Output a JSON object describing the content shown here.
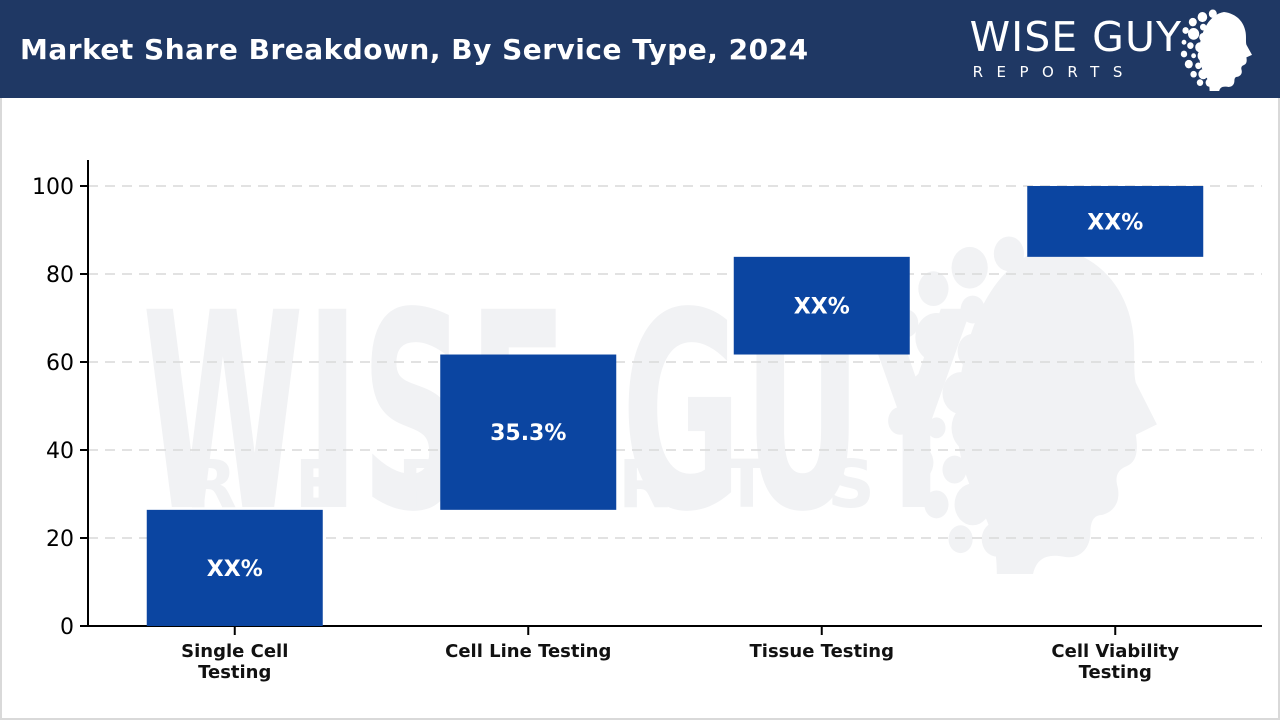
{
  "header": {
    "title": "Market Share Breakdown, By Service Type, 2024",
    "logo": {
      "name": "WISE GUY",
      "tagline": "REPORTS"
    }
  },
  "watermark": {
    "text": "WISE GUY",
    "tagline": "REPORTS"
  },
  "chart_data": {
    "type": "bar",
    "subtype": "waterfall",
    "title": "Market Share Breakdown, By Service Type, 2024",
    "xlabel": "",
    "ylabel": "",
    "ylim": [
      0,
      100
    ],
    "yticks": [
      0,
      20,
      40,
      60,
      80,
      100
    ],
    "grid": "horizontal-dashed",
    "legend": "none",
    "categories": [
      "Single Cell Testing",
      "Cell Line Testing",
      "Tissue Testing",
      "Cell Viability Testing"
    ],
    "category_label_lines": [
      [
        "Single Cell",
        "Testing"
      ],
      [
        "Cell Line Testing"
      ],
      [
        "Tissue Testing"
      ],
      [
        "Cell Viability",
        "Testing"
      ]
    ],
    "bars": [
      {
        "category": "Single Cell Testing",
        "start": 0,
        "end": 26.4,
        "height": 26.4,
        "value_label": "XX%"
      },
      {
        "category": "Cell Line Testing",
        "start": 26.4,
        "end": 61.7,
        "height": 35.3,
        "value_label": "35.3%"
      },
      {
        "category": "Tissue Testing",
        "start": 61.7,
        "end": 83.9,
        "height": 22.2,
        "value_label": "XX%"
      },
      {
        "category": "Cell Viability Testing",
        "start": 83.9,
        "end": 100,
        "height": 16.1,
        "value_label": "XX%"
      }
    ],
    "colors": {
      "bar": "#0b45a1",
      "value_label": "#ffffff",
      "axis": "#000000",
      "grid": "#d9d9d9",
      "tick_label": "#000000",
      "category_label": "#111111"
    }
  },
  "theme": {
    "header_bg": "#1f3864",
    "header_text": "#ffffff",
    "card_border": "#d9d9d9",
    "watermark": "#f1f2f4",
    "background": "#ffffff"
  }
}
